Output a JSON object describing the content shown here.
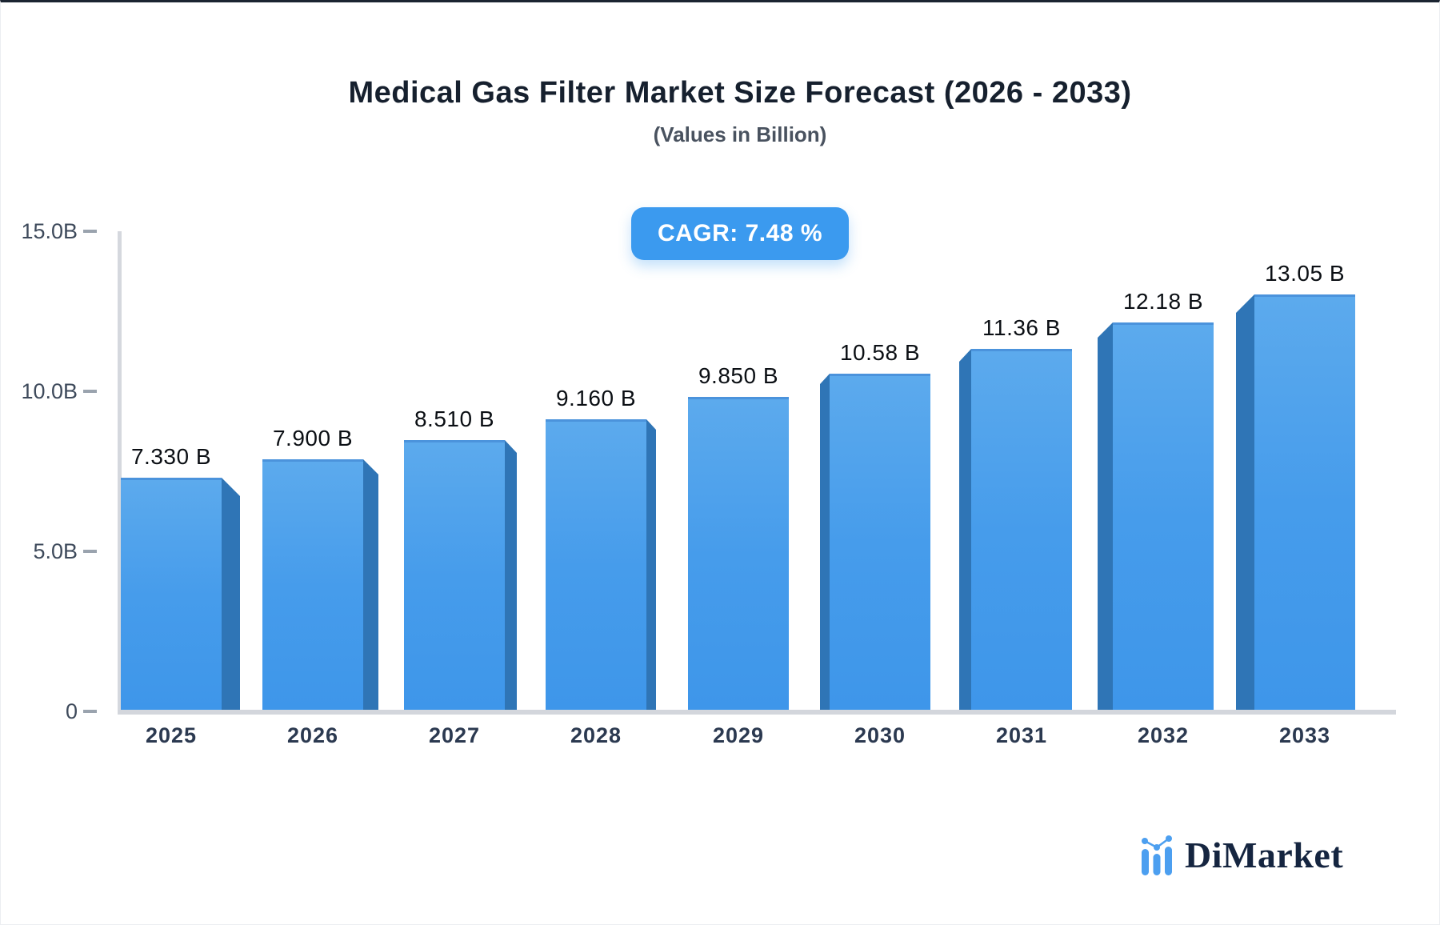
{
  "badge": {
    "label": "CAGR: 7.48 %",
    "color": "#3b9aef"
  },
  "logo": {
    "text": "DiMarket",
    "icon": "mini-bar-chart-icon",
    "text_color": "#152540",
    "icon_color": "#4c9ff0"
  },
  "chart_data": {
    "type": "bar",
    "title": "Medical Gas Filter Market Size Forecast (2026 - 2033)",
    "subtitle": "(Values in Billion)",
    "categories": [
      "2025",
      "2026",
      "2027",
      "2028",
      "2029",
      "2030",
      "2031",
      "2032",
      "2033"
    ],
    "values": [
      7.33,
      7.9,
      8.51,
      9.16,
      9.85,
      10.58,
      11.36,
      12.18,
      13.05
    ],
    "value_labels": [
      "7.330 B",
      "7.900 B",
      "8.510 B",
      "9.160 B",
      "9.850 B",
      "10.58 B",
      "11.36 B",
      "12.18 B",
      "13.05 B"
    ],
    "xlabel": "",
    "ylabel": "",
    "ylim": [
      0,
      15
    ],
    "yticks": {
      "values": [
        15,
        10,
        5,
        0
      ],
      "labels": [
        "15.0B",
        "10.0B",
        "5.0B",
        "0"
      ]
    },
    "grid": "off",
    "legend": "none",
    "bar_face_color_top": "#5caaed",
    "bar_face_color_bottom": "#3e96ea",
    "bar_side_color": "#2f75b6",
    "axis_color": "#d5d8de",
    "tick_color": "#9aa3ae"
  }
}
